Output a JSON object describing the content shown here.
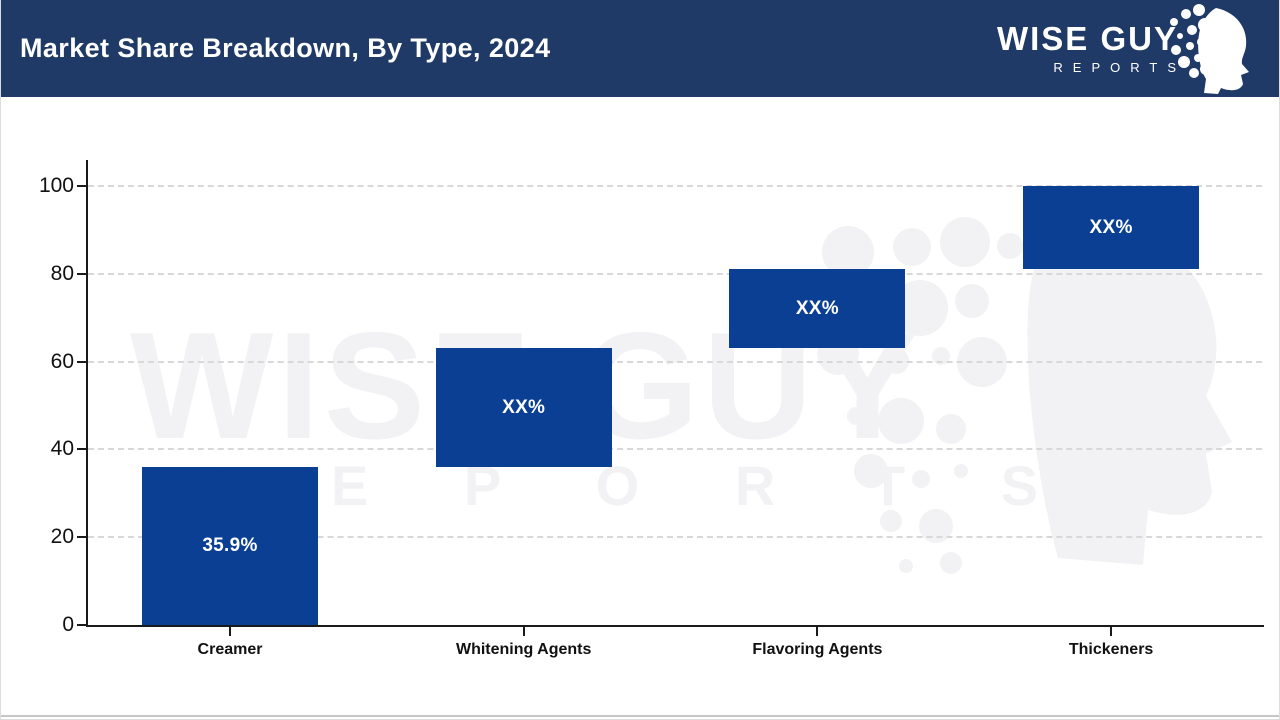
{
  "header": {
    "title": "Market Share Breakdown, By Type, 2024",
    "logo": {
      "line1": "WISE GUY",
      "line2": "REPORTS",
      "icon": "dot-face-profile-icon"
    }
  },
  "watermark": {
    "line1": "WISE GUY",
    "line2": "R E P O R T S",
    "icon": "dot-face-profile-watermark"
  },
  "colors": {
    "header_bg": "#1f3a66",
    "bar_blue": "#0a3f94",
    "gridline": "#d8d8d8",
    "axis": "#1a1a1a",
    "bar_label_text": "#ffffff",
    "watermark_gray": "#f2f2f4"
  },
  "chart_data": {
    "type": "bar",
    "subtype": "waterfall",
    "title": "Market Share Breakdown, By Type, 2024",
    "xlabel": "",
    "ylabel": "",
    "categories": [
      "Creamer",
      "Whitening Agents",
      "Flavoring Agents",
      "Thickeners"
    ],
    "segments": [
      {
        "category": "Creamer",
        "start": 0,
        "end": 35.9,
        "label": "35.9%"
      },
      {
        "category": "Whitening Agents",
        "start": 35.9,
        "end": 63,
        "label": "XX%"
      },
      {
        "category": "Flavoring Agents",
        "start": 63,
        "end": 81,
        "label": "XX%"
      },
      {
        "category": "Thickeners",
        "start": 81,
        "end": 100,
        "label": "XX%"
      }
    ],
    "yticks": [
      0,
      20,
      40,
      60,
      80,
      100
    ],
    "ylim": [
      0,
      106
    ],
    "grid": "dashed-horizontal",
    "legend": "none"
  }
}
